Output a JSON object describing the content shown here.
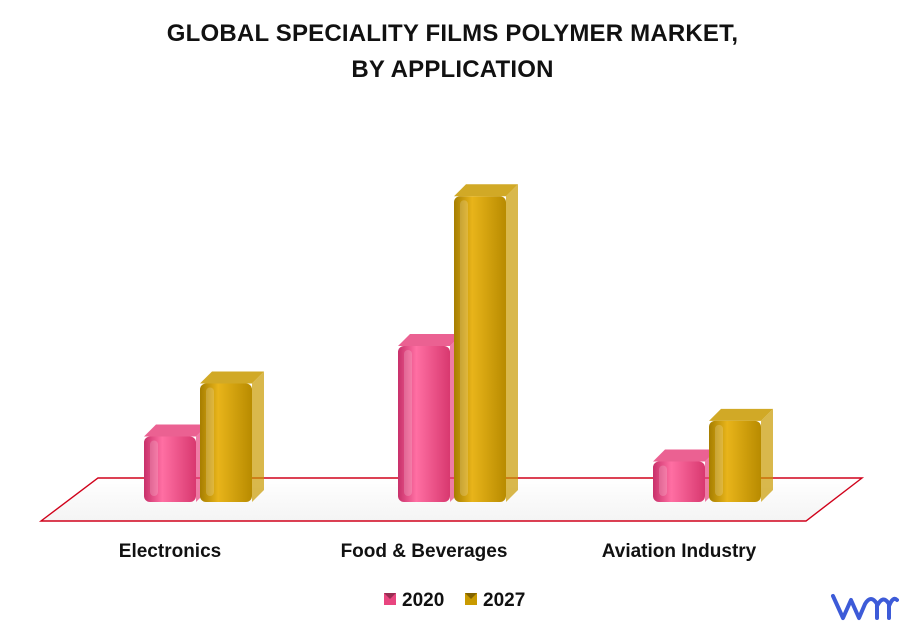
{
  "chart_data": {
    "type": "bar",
    "title_line1": "GLOBAL SPECIALITY FILMS POLYMER MARKET,",
    "title_line2": "BY APPLICATION",
    "categories": [
      "Electronics",
      "Food & Beverages",
      "Aviation Industry"
    ],
    "series": [
      {
        "name": "2020",
        "values": [
          2.1,
          5.0,
          1.3
        ],
        "color": "#e8457f"
      },
      {
        "name": "2027",
        "values": [
          3.8,
          9.8,
          2.6
        ],
        "color": "#c99a00"
      }
    ],
    "ylim": [
      0,
      10
    ],
    "grid": false,
    "legend_position": "bottom-center",
    "floor_color": "#d0021b"
  },
  "logo": {
    "name": "vmr-logo",
    "color": "#3d5bd8"
  }
}
